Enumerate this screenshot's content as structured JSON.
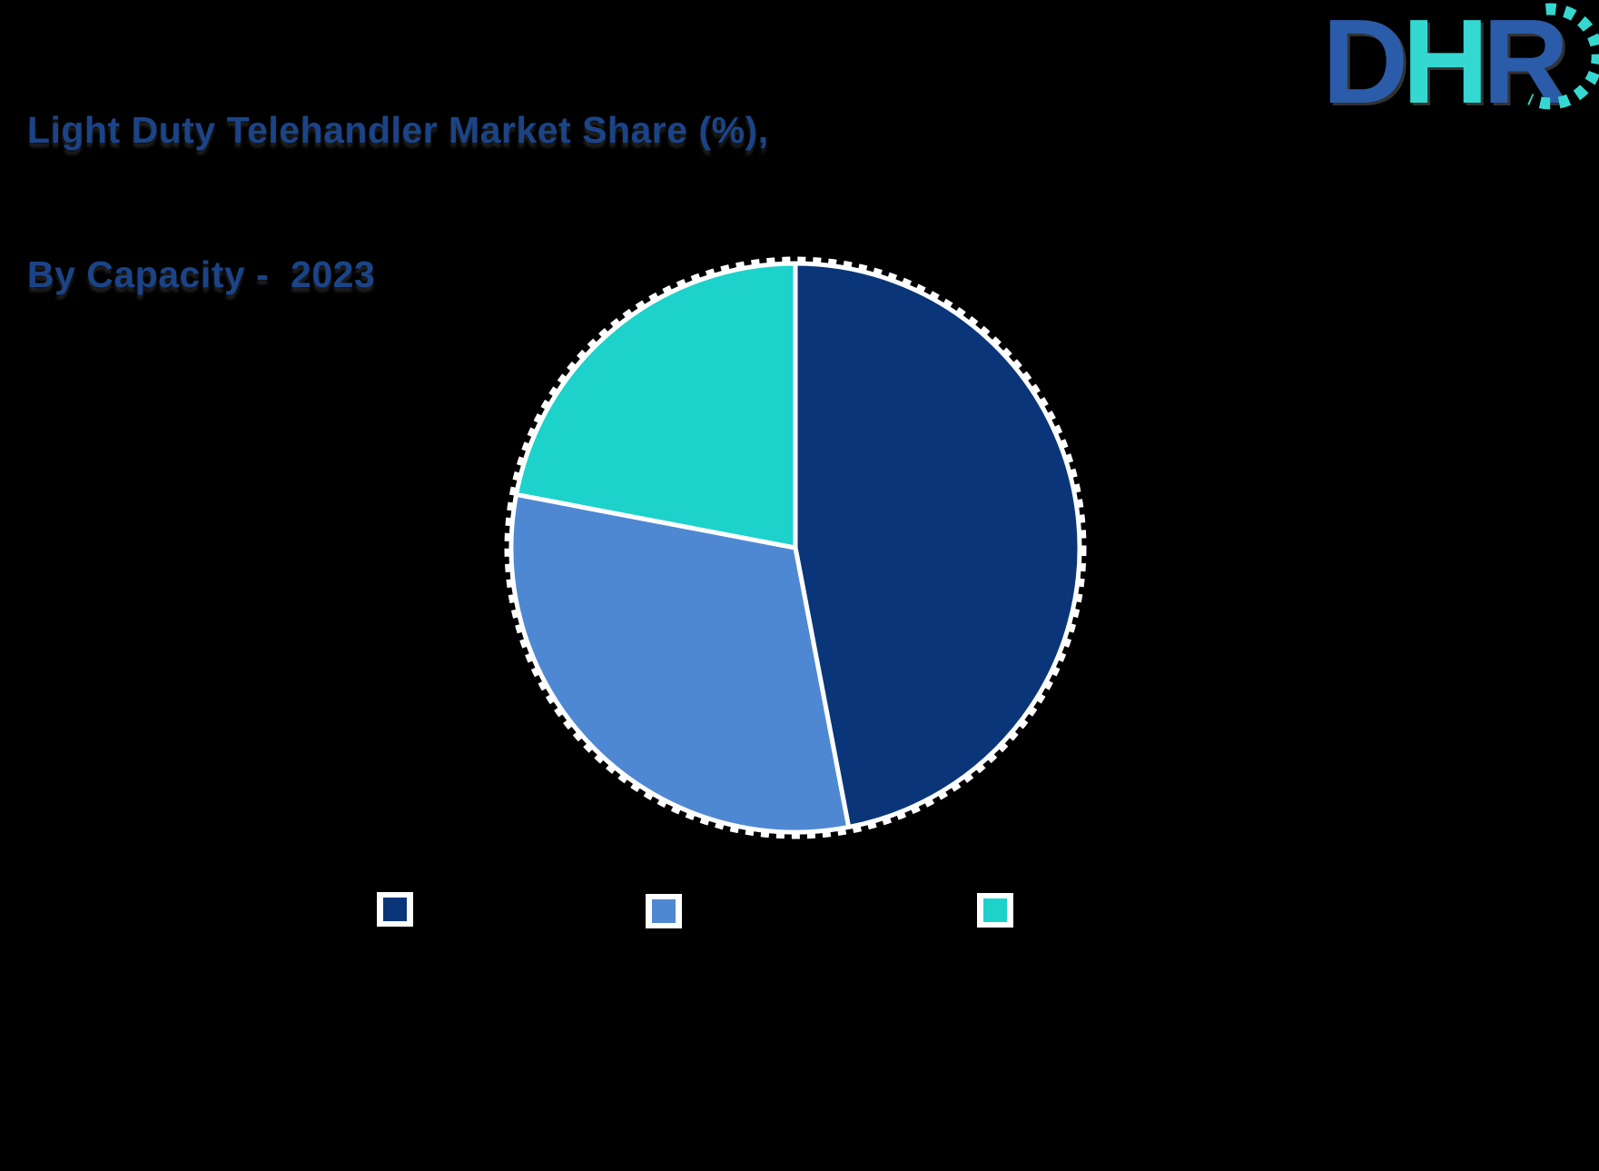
{
  "title": {
    "line1": "Light Duty Telehandler Market Share (%),",
    "line2": "By Capacity -  2023"
  },
  "logo": {
    "letters": [
      {
        "char": "D",
        "color": "#2b5ca9"
      },
      {
        "char": "H",
        "color": "#35d8d0"
      },
      {
        "char": "R",
        "color": "#2b5ca9"
      }
    ],
    "arc_color": "#35d8d0"
  },
  "chart_data": {
    "type": "pie",
    "title": "Light Duty Telehandler Market Share (%), By Capacity - 2023",
    "start_angle_deg": -90,
    "direction": "clockwise",
    "value_unit": "%",
    "segments": [
      {
        "label": "",
        "value": 47,
        "color": "#0a3679"
      },
      {
        "label": "",
        "value": 31,
        "color": "#4f88d2"
      },
      {
        "label": "",
        "value": 22,
        "color": "#1cd2cb"
      }
    ],
    "legend_position": "bottom",
    "data_labels_shown": false
  },
  "legend": {
    "items": [
      {
        "label": "",
        "color": "#0a3679"
      },
      {
        "label": "",
        "color": "#4f88d2"
      },
      {
        "label": "",
        "color": "#1cd2cb"
      }
    ]
  },
  "colors": {
    "background": "#000000",
    "title_text": "#1b4488",
    "pie_stroke": "#ffffff"
  }
}
